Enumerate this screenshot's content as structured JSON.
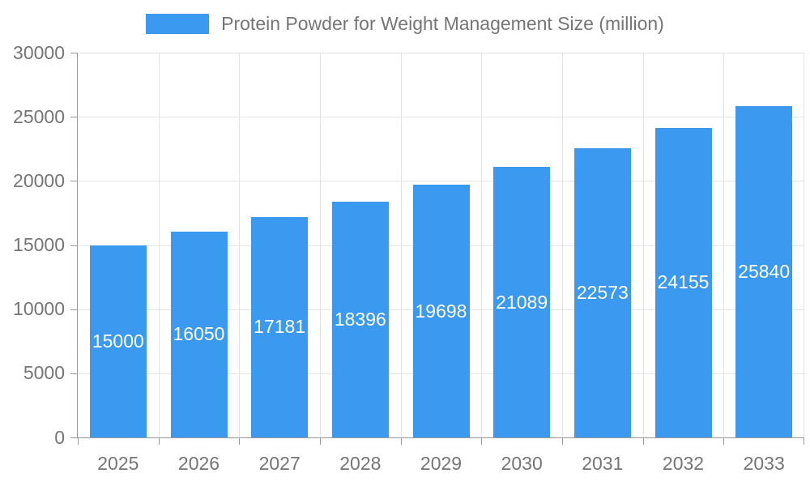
{
  "chart_data": {
    "type": "bar",
    "title": "Protein Powder for Weight Management Size (million)",
    "legend": [
      "Protein Powder for Weight Management Size (million)"
    ],
    "legend_position": "top",
    "categories": [
      "2025",
      "2026",
      "2027",
      "2028",
      "2029",
      "2030",
      "2031",
      "2032",
      "2033"
    ],
    "values": [
      15000,
      16050,
      17181,
      18396,
      19698,
      21089,
      22573,
      24155,
      25840
    ],
    "xlabel": "",
    "ylabel": "",
    "ylim": [
      0,
      30000
    ],
    "yticks": [
      0,
      5000,
      10000,
      15000,
      20000,
      25000,
      30000
    ],
    "grid": true,
    "bar_labels_inside": true,
    "colors": {
      "bar": "#3b99f0",
      "bar_value_text": "#ffffff",
      "axis_label": "#757575",
      "legend_text": "#757575",
      "axis_line": "#999999",
      "gridline": "#e3e3e3",
      "background": "#ffffff"
    }
  }
}
